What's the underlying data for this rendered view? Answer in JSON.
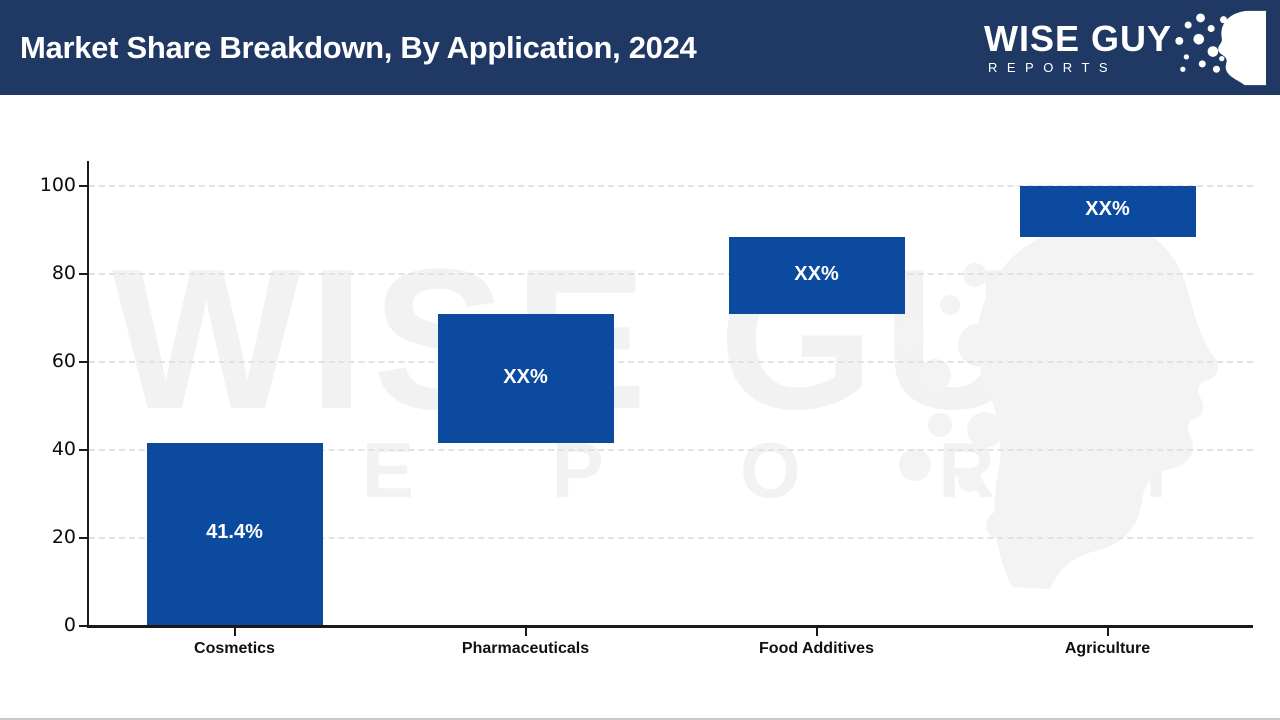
{
  "header": {
    "title": "Market Share Breakdown, By Application, 2024",
    "logo": {
      "line1": "WISE GUY",
      "line2": "REPORTS"
    }
  },
  "watermark": {
    "line1": "WISE GUY.",
    "line2": "R E P O R T S"
  },
  "chart_data": {
    "type": "bar",
    "subtype": "waterfall",
    "title": "Market Share Breakdown, By Application, 2024",
    "categories": [
      "Cosmetics",
      "Pharmaceuticals",
      "Food Additives",
      "Agriculture"
    ],
    "segments": [
      {
        "category": "Cosmetics",
        "start": 0,
        "end": 41.4,
        "value": 41.4,
        "label": "41.4%"
      },
      {
        "category": "Pharmaceuticals",
        "start": 41.4,
        "end": 70.8,
        "value": 29.4,
        "label": "XX%"
      },
      {
        "category": "Food Additives",
        "start": 70.8,
        "end": 88.2,
        "value": 17.4,
        "label": "XX%"
      },
      {
        "category": "Agriculture",
        "start": 88.2,
        "end": 100,
        "value": 11.8,
        "label": "XX%"
      }
    ],
    "yticks": [
      0,
      20,
      40,
      60,
      80,
      100
    ],
    "ylim": [
      0,
      105
    ],
    "xlabel": "",
    "ylabel": "",
    "grid": "horizontal-dashed",
    "legend": "none",
    "bar_color": "#0b4a9f",
    "bar_label_color": "#ffffff"
  },
  "colors": {
    "header_bg": "#1f3864",
    "page_bg": "#ffffff",
    "axis": "#1a1a1a",
    "grid": "#e2e2e2",
    "watermark": "#f2f2f2"
  }
}
